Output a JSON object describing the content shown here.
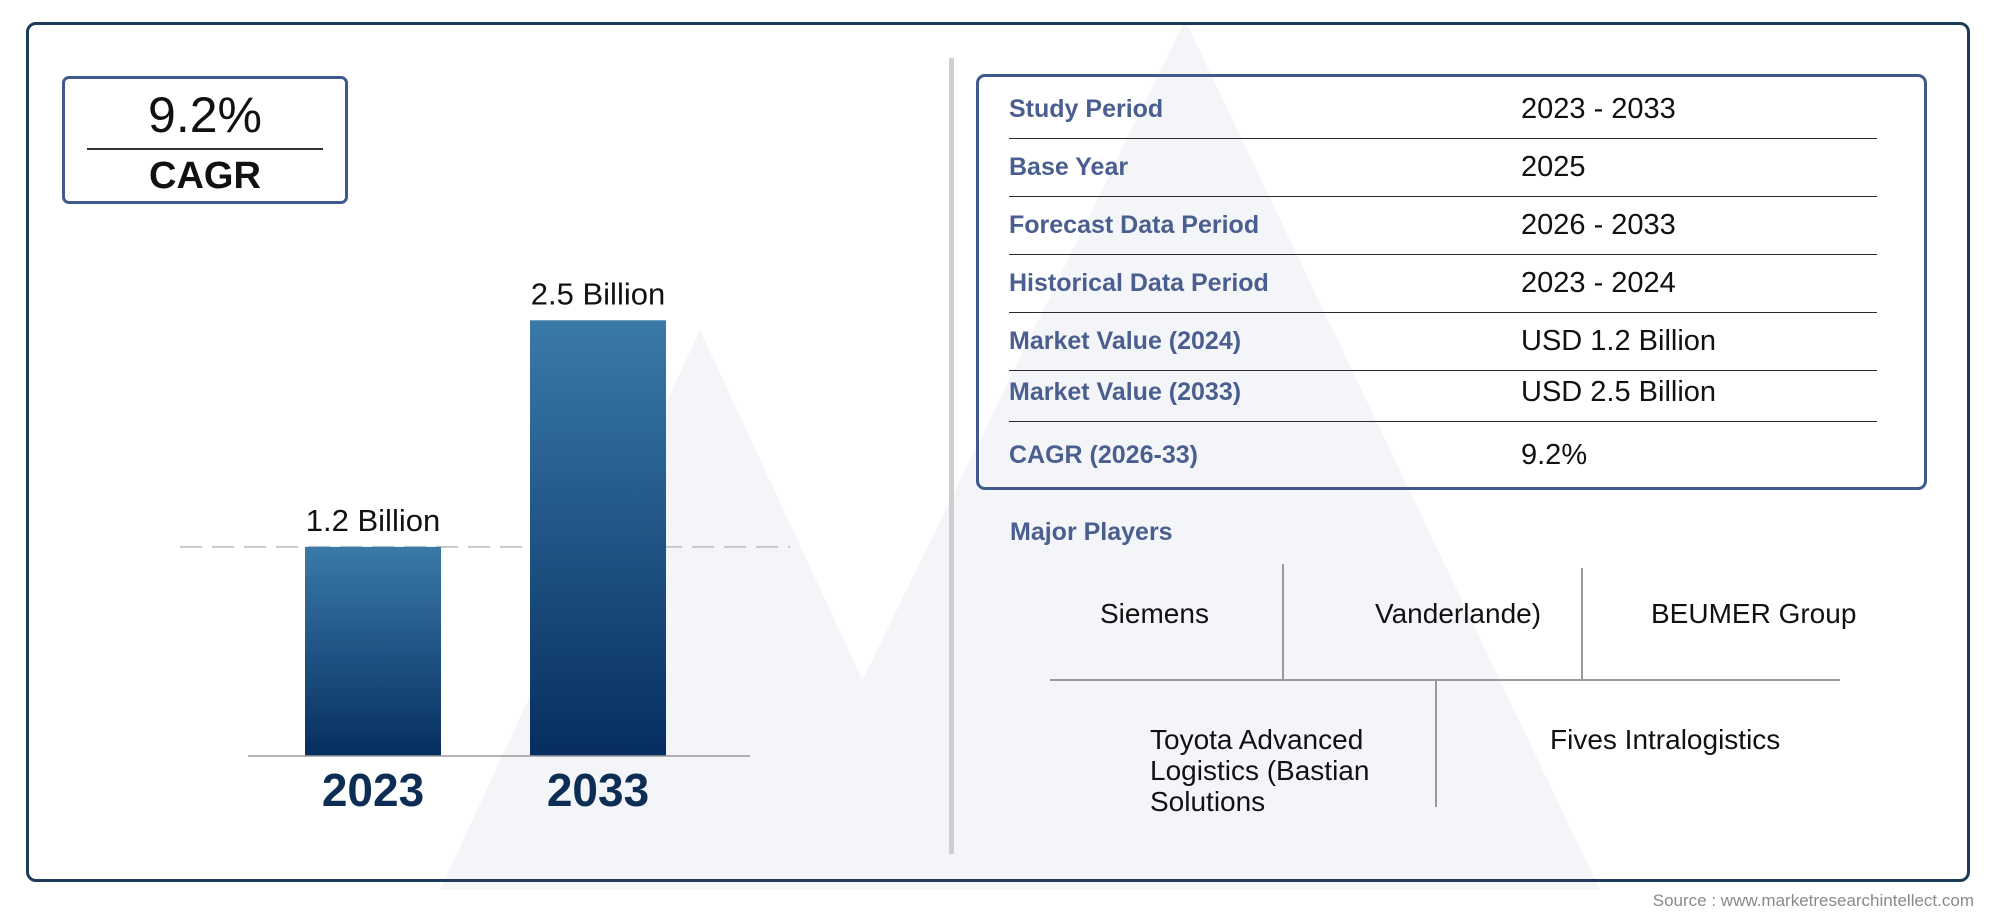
{
  "cagr_box": {
    "value": "9.2%",
    "label": "CAGR"
  },
  "chart_data": {
    "type": "bar",
    "categories": [
      "2023",
      "2033"
    ],
    "values": [
      1.2,
      2.5
    ],
    "data_labels": [
      "1.2 Billion",
      "2.5 Billion"
    ],
    "title": "",
    "xlabel": "",
    "ylabel": "",
    "ylim": [
      0,
      2.8
    ],
    "grid": false,
    "reference_line_at": 1.2
  },
  "colors": {
    "bar_top": "#3a7aa8",
    "bar_bottom": "#062e60",
    "accent": "#4a5f8f",
    "border": "#1c3a5a",
    "year_label": "#0d2d55"
  },
  "info_table": [
    {
      "label": "Study Period",
      "value": "2023 - 2033"
    },
    {
      "label": "Base Year",
      "value": "2025"
    },
    {
      "label": "Forecast Data Period",
      "value": "2026 - 2033"
    },
    {
      "label": "Historical Data Period",
      "value": "2023 - 2024"
    },
    {
      "label": "Market Value (2024)",
      "value": "USD 1.2 Billion"
    },
    {
      "label": "Market Value (2033)",
      "value": "USD 2.5 Billion"
    },
    {
      "label": "CAGR (2026-33)",
      "value": "9.2%"
    }
  ],
  "major_players": {
    "title": "Major Players",
    "row1": [
      "Siemens",
      "Vanderlande)",
      "BEUMER Group"
    ],
    "row2": [
      "Toyota Advanced Logistics (Bastian Solutions",
      "Fives Intralogistics"
    ]
  },
  "source": "Source : www.marketresearchintellect.com"
}
